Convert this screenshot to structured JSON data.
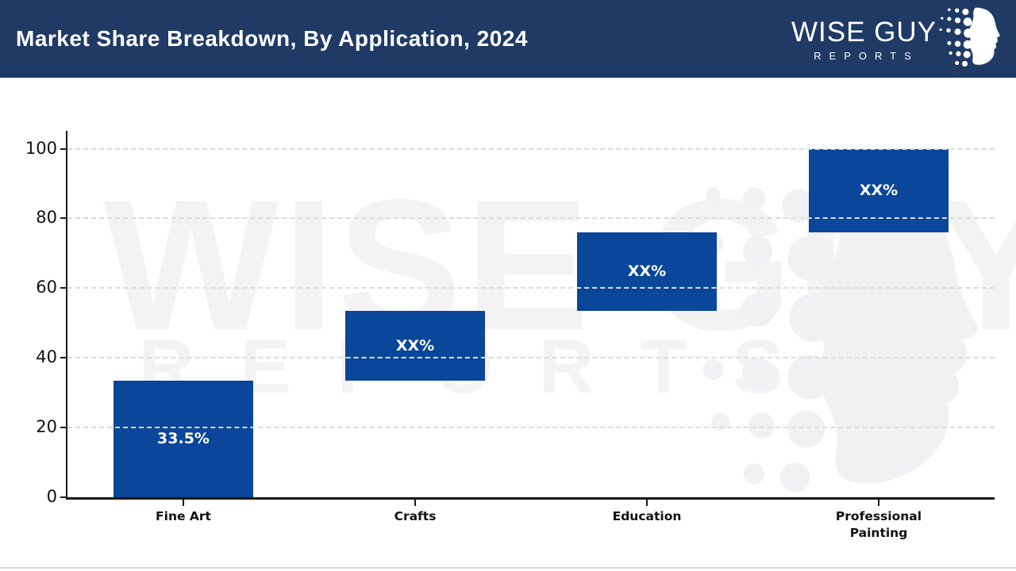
{
  "header": {
    "title": "Market Share Breakdown, By Application, 2024",
    "logo": {
      "line1": "WISE GUY",
      "line2": "REPORTS"
    }
  },
  "watermark": {
    "line1": "WISE GUY",
    "line2": "REPORTS"
  },
  "chart_data": {
    "type": "bar",
    "subtype": "floating-segment (waterfall-style market share)",
    "title": "Market Share Breakdown, By Application, 2024",
    "categories": [
      "Fine Art",
      "Crafts",
      "Education",
      "Professional Painting"
    ],
    "segments": [
      {
        "category": "Fine Art",
        "start": 0,
        "end": 33.5,
        "label": "33.5%"
      },
      {
        "category": "Crafts",
        "start": 33.5,
        "end": 53.5,
        "label": "XX%"
      },
      {
        "category": "Education",
        "start": 53.5,
        "end": 76,
        "label": "XX%"
      },
      {
        "category": "Professional Painting",
        "start": 76,
        "end": 100,
        "label": "XX%"
      }
    ],
    "xlabel": "",
    "ylabel": "",
    "ylim": [
      0,
      100
    ],
    "yticks": [
      0,
      20,
      40,
      60,
      80,
      100
    ],
    "grid": "horizontal dashed, drawn over bars",
    "legend": "none",
    "bar_color": "#0a4699",
    "bar_value_label_color": "#ffffff"
  },
  "colors": {
    "header_bg": "#203a66",
    "bar": "#0a4699",
    "axis": "#1a1a1a",
    "grid": "#dcdcdc",
    "footer_line": "#d9d9d9"
  }
}
